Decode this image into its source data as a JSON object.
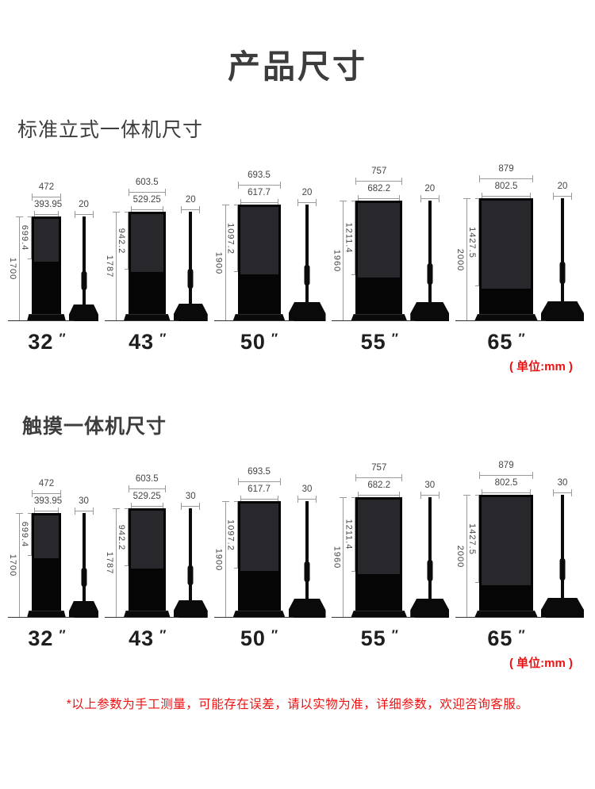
{
  "page": {
    "title": "产品尺寸",
    "footnote": "*以上参数为手工测量，可能存在误差，请以实物为准，详细参数，欢迎咨询客服。"
  },
  "colors": {
    "accent_red": "#ee1111",
    "kiosk_body": "#050505",
    "kiosk_screen": "#28282c",
    "dimension_line": "#9a9a9a",
    "dimension_text": "#454545",
    "title_text": "#3c3c3c"
  },
  "sections": [
    {
      "title": "标准立式一体机尺寸",
      "unit_note": "( 单位:mm )",
      "kiosks": [
        {
          "size_label": "32",
          "inch_mark": "″",
          "outer_width": "472",
          "screen_width": "393.95",
          "thickness": "20",
          "screen_height": "699.4",
          "outer_height": "1700"
        },
        {
          "size_label": "43",
          "inch_mark": "″",
          "outer_width": "603.5",
          "screen_width": "529.25",
          "thickness": "20",
          "screen_height": "942.2",
          "outer_height": "1787"
        },
        {
          "size_label": "50",
          "inch_mark": "″",
          "outer_width": "693.5",
          "screen_width": "617.7",
          "thickness": "20",
          "screen_height": "1097.2",
          "outer_height": "1900"
        },
        {
          "size_label": "55",
          "inch_mark": "″",
          "outer_width": "757",
          "screen_width": "682.2",
          "thickness": "20",
          "screen_height": "1211.4",
          "outer_height": "1960"
        },
        {
          "size_label": "65",
          "inch_mark": "″",
          "outer_width": "879",
          "screen_width": "802.5",
          "thickness": "20",
          "screen_height": "1427.5",
          "outer_height": "2000"
        }
      ]
    },
    {
      "title": "触摸一体机尺寸",
      "unit_note": "( 单位:mm )",
      "kiosks": [
        {
          "size_label": "32",
          "inch_mark": "″",
          "outer_width": "472",
          "screen_width": "393.95",
          "thickness": "30",
          "screen_height": "699.4",
          "outer_height": "1700"
        },
        {
          "size_label": "43",
          "inch_mark": "″",
          "outer_width": "603.5",
          "screen_width": "529.25",
          "thickness": "30",
          "screen_height": "942.2",
          "outer_height": "1787"
        },
        {
          "size_label": "50",
          "inch_mark": "″",
          "outer_width": "693.5",
          "screen_width": "617.7",
          "thickness": "30",
          "screen_height": "1097.2",
          "outer_height": "1900"
        },
        {
          "size_label": "55",
          "inch_mark": "″",
          "outer_width": "757",
          "screen_width": "682.2",
          "thickness": "30",
          "screen_height": "1211.4",
          "outer_height": "1960"
        },
        {
          "size_label": "65",
          "inch_mark": "″",
          "outer_width": "879",
          "screen_width": "802.5",
          "thickness": "30",
          "screen_height": "1427.5",
          "outer_height": "2000"
        }
      ]
    }
  ]
}
